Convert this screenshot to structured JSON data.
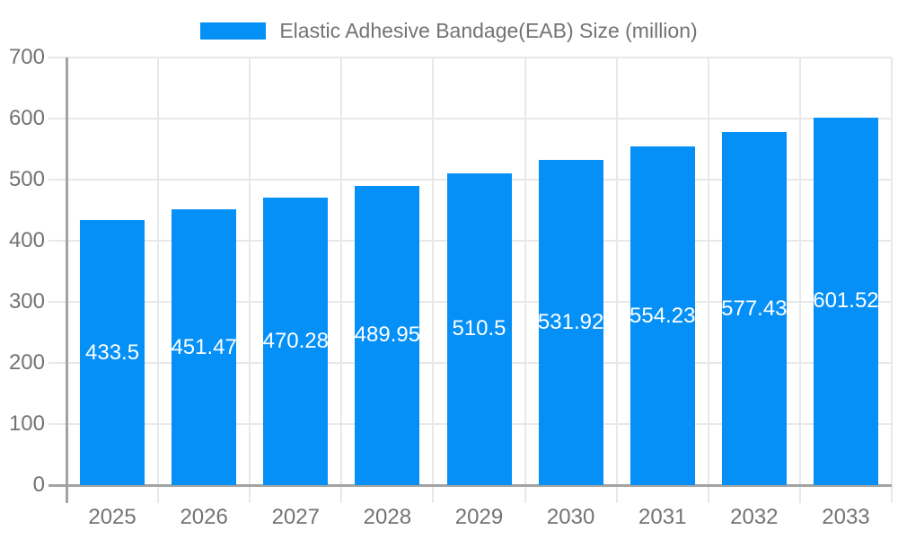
{
  "legend": {
    "label": "Elastic Adhesive Bandage(EAB) Size (million)",
    "swatch_color": "#0590f8"
  },
  "chart_data": {
    "type": "bar",
    "title": "Elastic Adhesive Bandage(EAB) Size (million)",
    "categories": [
      "2025",
      "2026",
      "2027",
      "2028",
      "2029",
      "2030",
      "2031",
      "2032",
      "2033"
    ],
    "series": [
      {
        "name": "Elastic Adhesive Bandage(EAB) Size (million)",
        "values": [
          433.5,
          451.47,
          470.28,
          489.95,
          510.5,
          531.92,
          554.23,
          577.43,
          601.52
        ],
        "value_labels": [
          "433.5",
          "451.47",
          "470.28",
          "489.95",
          "510.5",
          "531.92",
          "554.23",
          "577.43",
          "601.52"
        ]
      }
    ],
    "xlabel": "",
    "ylabel": "",
    "ylim": [
      0,
      700
    ],
    "ytick_step": 100,
    "yticks": [
      0,
      100,
      200,
      300,
      400,
      500,
      600,
      700
    ],
    "ytick_labels": [
      "0",
      "100",
      "200",
      "300",
      "400",
      "500",
      "600",
      "700"
    ],
    "grid": true,
    "legend_position": "top-center",
    "value_label_position": "bar-center"
  },
  "colors": {
    "bar": "#0590f8",
    "grid": "#e8e8e8",
    "axis": "#a3a3a3",
    "tick_label": "#737373",
    "value_label": "#ffffff",
    "background": "#ffffff"
  }
}
